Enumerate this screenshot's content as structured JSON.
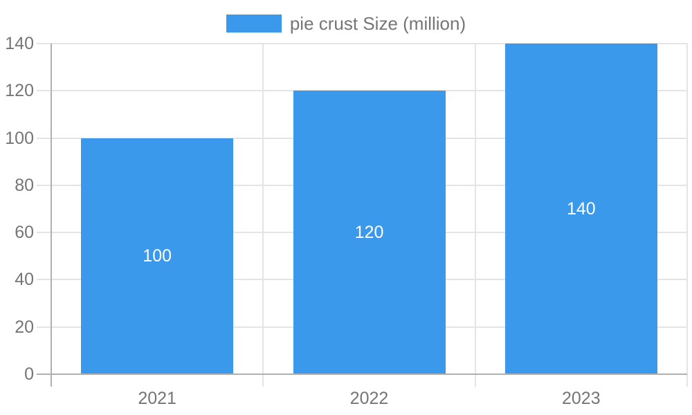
{
  "chart_data": {
    "type": "bar",
    "title": "",
    "legend": {
      "label": "pie crust Size (million)",
      "position": "top"
    },
    "categories": [
      "2021",
      "2022",
      "2023"
    ],
    "series": [
      {
        "name": "pie crust Size (million)",
        "values": [
          100,
          120,
          140
        ]
      }
    ],
    "value_labels": [
      "100",
      "120",
      "140"
    ],
    "xlabel": "",
    "ylabel": "",
    "ylim": [
      0,
      140
    ],
    "yticks": [
      0,
      20,
      40,
      60,
      80,
      100,
      120,
      140
    ],
    "grid": true,
    "colors": {
      "bar": "#3B99EC",
      "value_label": "#FFFFFF",
      "axis_text": "#757575",
      "gridline": "#E4E4E4",
      "axis_line": "#B0B0B0",
      "background": "#FFFFFF"
    }
  }
}
